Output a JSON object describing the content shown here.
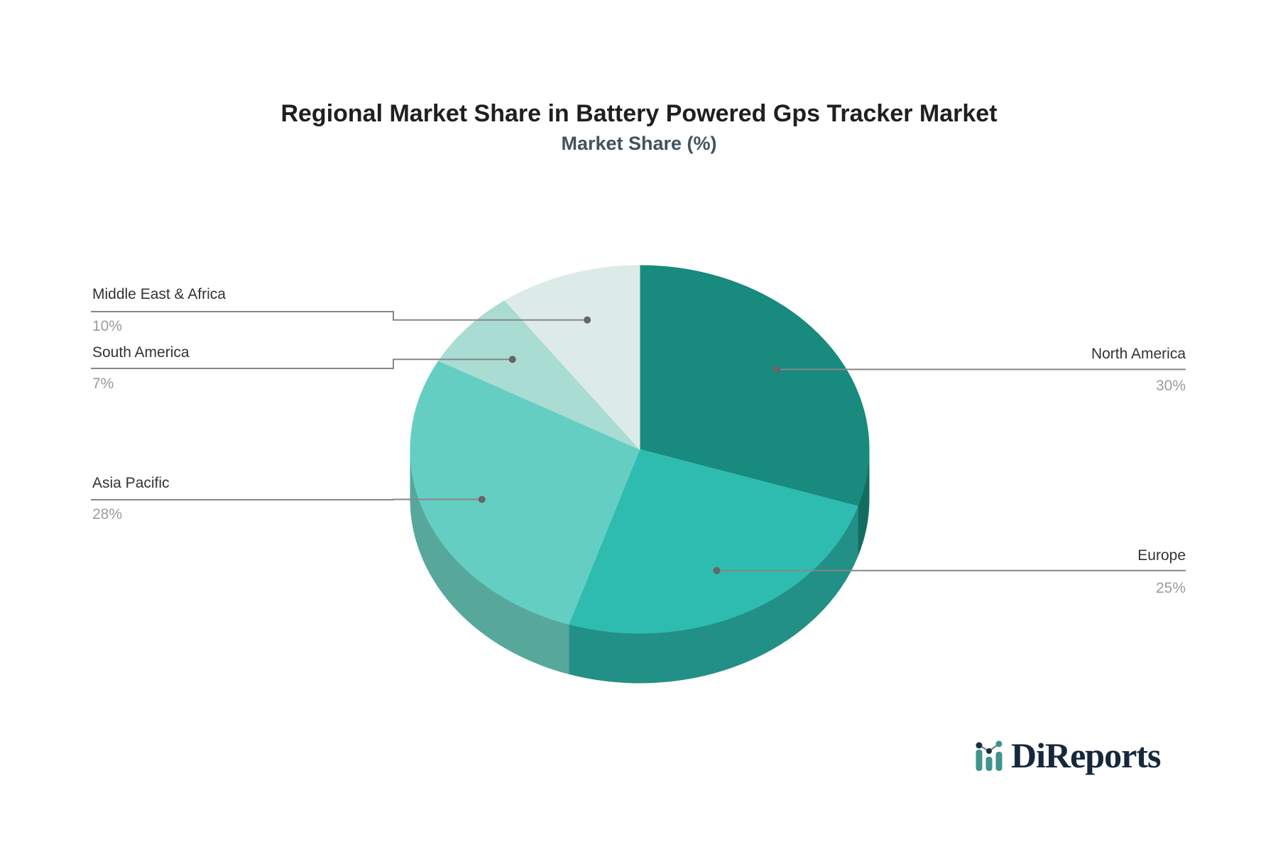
{
  "chart_data": {
    "type": "pie",
    "style": "3d",
    "title": "Regional Market Share in Battery Powered Gps Tracker Market",
    "subtitle": "Market Share (%)",
    "start_angle": "12-oclock",
    "direction": "clockwise",
    "categories": [
      "North America",
      "Europe",
      "Asia Pacific",
      "South America",
      "Middle East & Africa"
    ],
    "values": [
      30,
      25,
      28,
      7,
      10
    ],
    "value_labels": [
      "30%",
      "25%",
      "28%",
      "7%",
      "10%"
    ],
    "slice_colors": [
      "#188a7e",
      "#2ebcb0",
      "#65cec3",
      "#a9dcd3",
      "#dcebe8"
    ],
    "slice_side_colors": [
      "#136c60",
      "#229086",
      "#57a89b",
      "#8cc5bc",
      "#c2d8d3"
    ],
    "leader_line_color": "#878787",
    "leader_dot_color": "#666666",
    "label_text_color": "#333333",
    "value_text_color": "#9b9b9b",
    "title_color": "#1f1f1f",
    "subtitle_color": "#44525e",
    "legend_position": "callout-labels"
  },
  "branding": {
    "logo_text": "DiReports",
    "logo_text_color": "#16283c",
    "logo_bar_color": "#3f948b",
    "logo_dot_navy": "#1b3045"
  }
}
